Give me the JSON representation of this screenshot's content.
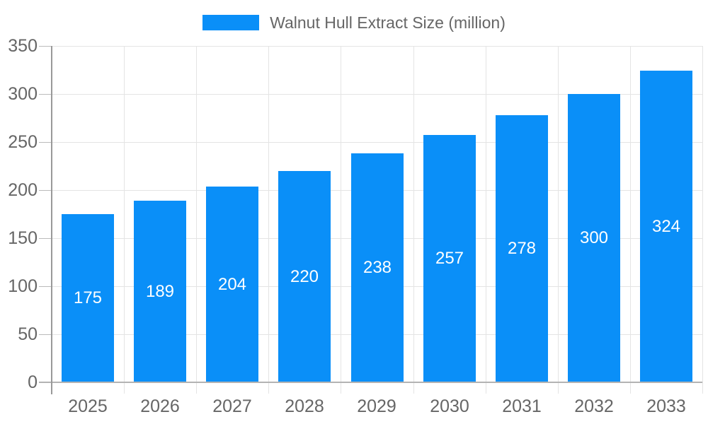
{
  "legend": {
    "label": "Walnut Hull Extract Size (million)"
  },
  "colors": {
    "bar": "#0a8ff8",
    "bar_label": "#ffffff",
    "axis_line": "#999999",
    "baseline": "#b3b3b3",
    "grid_line": "#e4e4e4",
    "y_tick": "#bbbbbb",
    "tick_label": "#666666",
    "legend_text": "#666666",
    "background": "#ffffff"
  },
  "chart_data": {
    "type": "bar",
    "title": "Walnut Hull Extract Size (million)",
    "categories": [
      "2025",
      "2026",
      "2027",
      "2028",
      "2029",
      "2030",
      "2031",
      "2032",
      "2033"
    ],
    "series": [
      {
        "name": "Walnut Hull Extract Size (million)",
        "values": [
          175,
          189,
          204,
          220,
          238,
          257,
          278,
          300,
          324
        ]
      }
    ],
    "xlabel": "",
    "ylabel": "",
    "ylim": [
      0,
      350
    ],
    "yticks": [
      0,
      50,
      100,
      150,
      200,
      250,
      300,
      350
    ],
    "grid": true,
    "legend_position": "top-center",
    "bar_label_style": "white-centered-inside"
  }
}
